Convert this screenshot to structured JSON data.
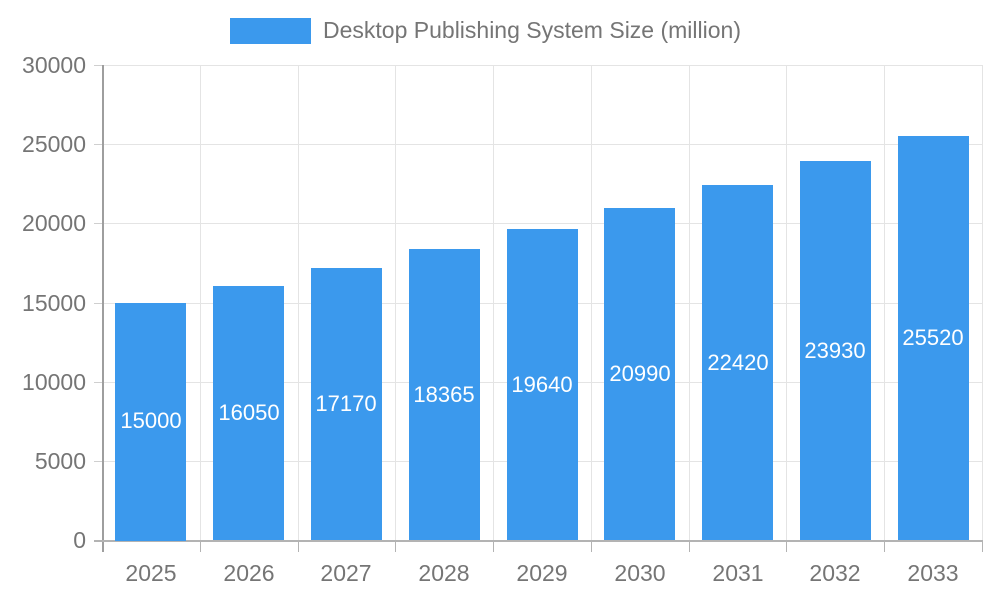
{
  "chart_data": {
    "type": "bar",
    "title": "Desktop Publishing System Size (million)",
    "categories": [
      "2025",
      "2026",
      "2027",
      "2028",
      "2029",
      "2030",
      "2031",
      "2032",
      "2033"
    ],
    "series": [
      {
        "name": "Desktop Publishing System Size (million)",
        "values": [
          15000,
          16050,
          17170,
          18365,
          19640,
          20990,
          22420,
          23930,
          25520
        ]
      }
    ],
    "xlabel": "",
    "ylabel": "",
    "ylim": [
      0,
      30000
    ],
    "y_ticks": [
      0,
      5000,
      10000,
      15000,
      20000,
      25000,
      30000
    ],
    "grid": true,
    "legend_position": "top",
    "bar_labels_inside": true,
    "colors": {
      "bar": "#3B99ED",
      "bar_label_text": "#FFFFFF",
      "axis_text": "#757575",
      "gridline": "#E4E4E4",
      "y_axis_line": "#9E9E9E",
      "x_axis_line": "#B3B3B3",
      "y_tick_mark": "#CFCFCF",
      "x_tick_mark": "#B3B3B3",
      "background": "#FFFFFF"
    }
  }
}
